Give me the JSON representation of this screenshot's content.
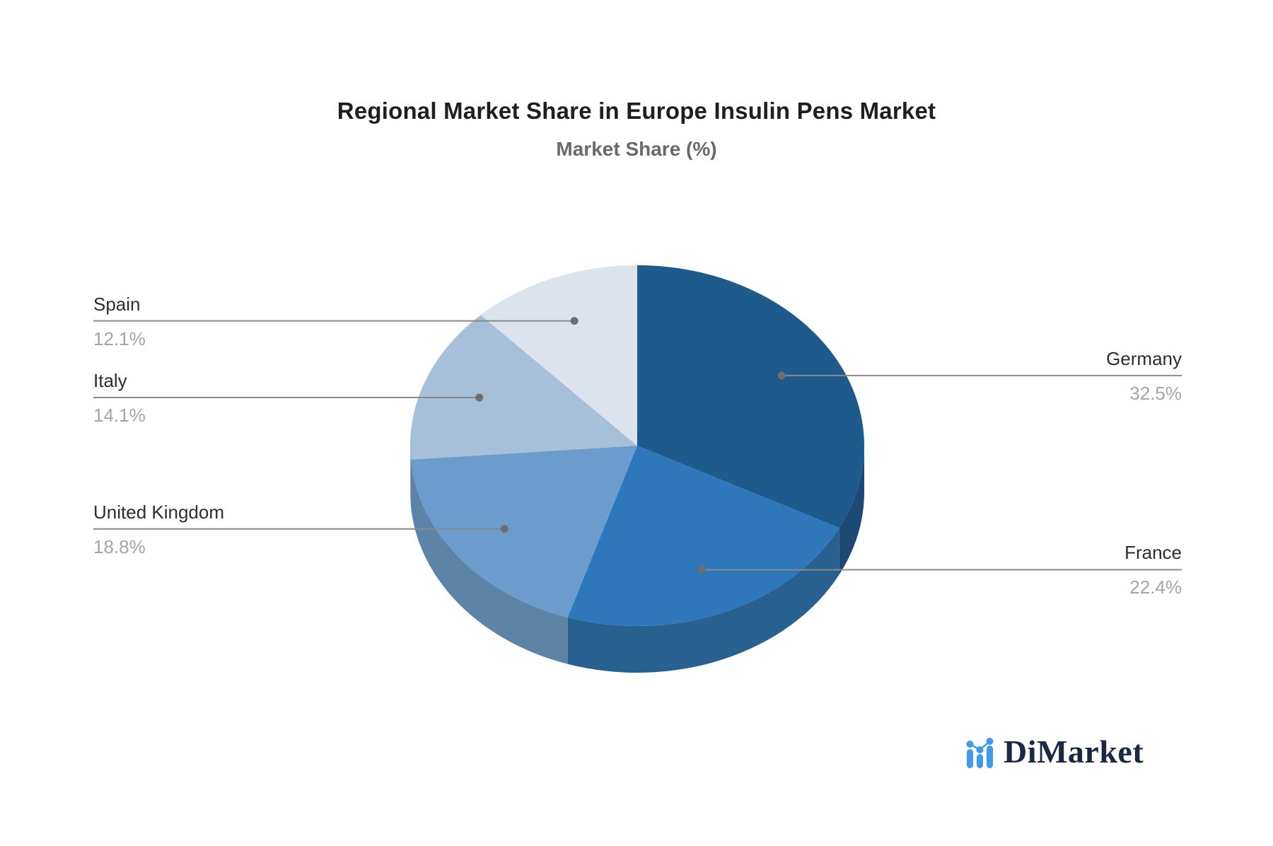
{
  "chart_data": {
    "type": "pie",
    "title": "Regional Market Share in Europe Insulin Pens Market",
    "subtitle": "Market Share (%)",
    "style_3d": true,
    "start_angle": "top",
    "direction": "clockwise",
    "label_lines": true,
    "background": "#ffffff",
    "leader_line_color": "#8a8a8a",
    "leader_dot_color": "#6f6f6f",
    "slices": [
      {
        "label": "Germany",
        "value": 32.5,
        "pct": "32.5%",
        "color": "#1e5a8c",
        "side_color": "#1c4a74",
        "label_side": "right"
      },
      {
        "label": "France",
        "value": 22.4,
        "pct": "22.4%",
        "color": "#2e77bb",
        "side_color": "#28618f",
        "label_side": "right"
      },
      {
        "label": "United Kingdom",
        "value": 18.8,
        "pct": "18.8%",
        "color": "#6b9ccd",
        "side_color": "#5b84a6",
        "label_side": "left"
      },
      {
        "label": "Italy",
        "value": 14.1,
        "pct": "14.1%",
        "color": "#a6c0da",
        "side_color": "#8aa4bd",
        "label_side": "left"
      },
      {
        "label": "Spain",
        "value": 12.1,
        "pct": "12.1%",
        "color": "#dce3ed",
        "side_color": "#b8c4d4",
        "label_side": "left"
      }
    ]
  },
  "logo": {
    "text": "DiMarket",
    "icon": "bar-line-chart-icon",
    "icon_color": "#3d9be9",
    "text_color": "#1b2844"
  }
}
